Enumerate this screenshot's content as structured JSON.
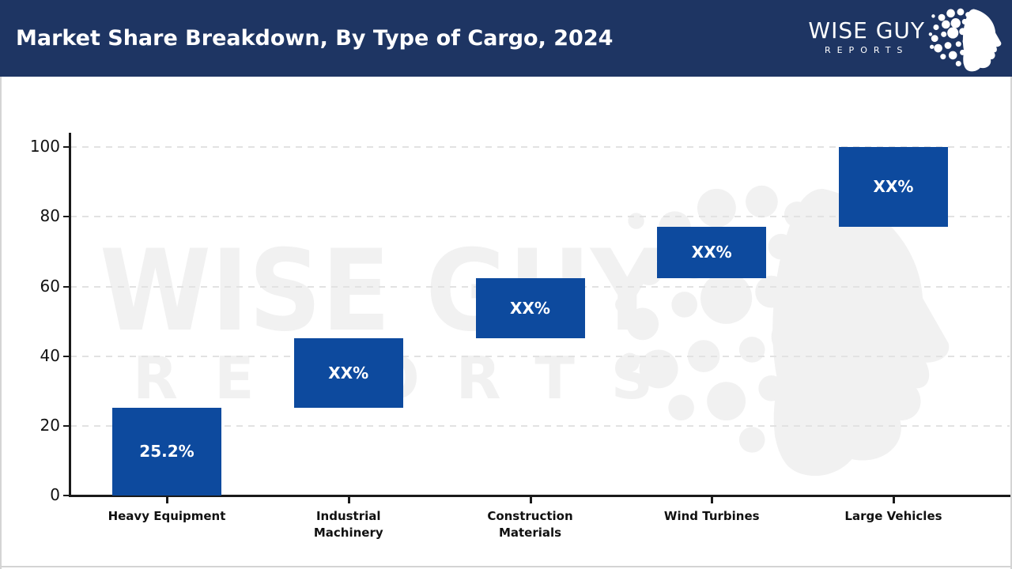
{
  "header": {
    "title": "Market Share Breakdown, By Type of Cargo, 2024",
    "logo": {
      "name": "WISE GUY",
      "tagline": "REPORTS"
    }
  },
  "watermark": {
    "name": "WISE GUY",
    "tagline": "REPORTS"
  },
  "chart_data": {
    "type": "bar",
    "variant": "floating-waterfall",
    "title": "Market Share Breakdown, By Type of Cargo, 2024",
    "categories": [
      "Heavy Equipment",
      "Industrial Machinery",
      "Construction Materials",
      "Wind Turbines",
      "Large Vehicles"
    ],
    "segments": [
      {
        "category": "Heavy Equipment",
        "start": 0,
        "end": 25.2,
        "label": "25.2%"
      },
      {
        "category": "Industrial Machinery",
        "start": 25.2,
        "end": 45.2,
        "label": "XX%"
      },
      {
        "category": "Construction Materials",
        "start": 45.2,
        "end": 62.5,
        "label": "XX%"
      },
      {
        "category": "Wind Turbines",
        "start": 62.5,
        "end": 77.1,
        "label": "XX%"
      },
      {
        "category": "Large Vehicles",
        "start": 77.1,
        "end": 100,
        "label": "XX%"
      }
    ],
    "xlabel": "",
    "ylabel": "",
    "ylim": [
      0,
      100
    ],
    "yticks": [
      0,
      20,
      40,
      60,
      80,
      100
    ],
    "grid": "horizontal-dashed",
    "legend": "none",
    "bar_color": "#0d4a9e",
    "bar_label_color": "#ffffff"
  },
  "colors": {
    "header_bg": "#1e3563",
    "bar": "#0d4a9e",
    "grid": "#e2e2e2",
    "axis": "#1a1a1a",
    "text": "#111111",
    "watermark": "#f1f1f1",
    "frame": "#d4d4d4"
  }
}
